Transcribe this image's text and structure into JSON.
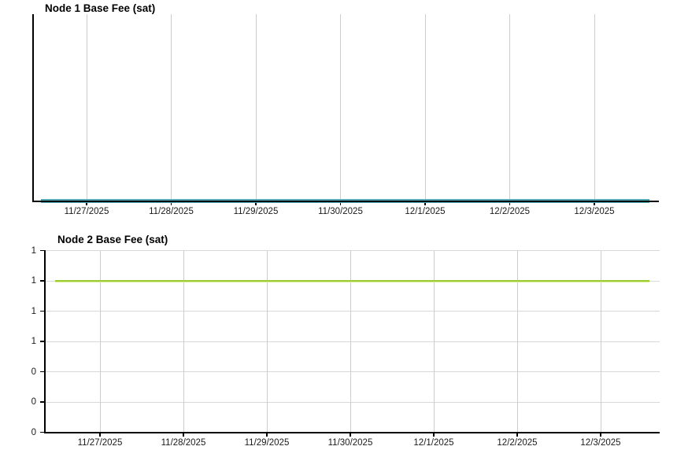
{
  "page": {
    "background": "#ffffff"
  },
  "colors": {
    "axis": "#000000",
    "vertical_gridline": "#cdcdcd",
    "horizontal_gridline": "#d8d8d8",
    "node1_line": "#52a8b4",
    "node2_line": "#9ccd35",
    "node2_line_edge": "#dcea90",
    "tick_label_text": "#1a1a1a",
    "title_text": "#000000"
  },
  "chart_data": [
    {
      "type": "line",
      "title": "Node 1 Base Fee (sat)",
      "xlabel": "",
      "ylabel": "",
      "x_tick_labels": [
        "11/27/2025",
        "11/28/2025",
        "11/29/2025",
        "11/30/2025",
        "12/1/2025",
        "12/2/2025",
        "12/3/2025"
      ],
      "y_tick_labels": [],
      "series": [
        {
          "name": "Node 1 base fee",
          "values": [
            0,
            0,
            0,
            0,
            0,
            0,
            0
          ]
        }
      ],
      "constant_value": 0,
      "ylim": [
        0,
        1
      ],
      "line_color": "#52a8b4",
      "grid": "vertical-only",
      "legend_position": "none"
    },
    {
      "type": "line",
      "title": "Node 2 Base Fee (sat)",
      "xlabel": "",
      "ylabel": "",
      "x_tick_labels": [
        "11/27/2025",
        "11/28/2025",
        "11/29/2025",
        "11/30/2025",
        "12/1/2025",
        "12/2/2025",
        "12/3/2025"
      ],
      "y_tick_labels": [
        "1",
        "1",
        "1",
        "1",
        "0",
        "0",
        "0"
      ],
      "series": [
        {
          "name": "Node 2 base fee",
          "values": [
            1,
            1,
            1,
            1,
            1,
            1,
            1
          ]
        }
      ],
      "constant_value": 1,
      "ylim": [
        0,
        1.2
      ],
      "line_color": "#9ccd35",
      "grid": "both",
      "legend_position": "none"
    }
  ]
}
